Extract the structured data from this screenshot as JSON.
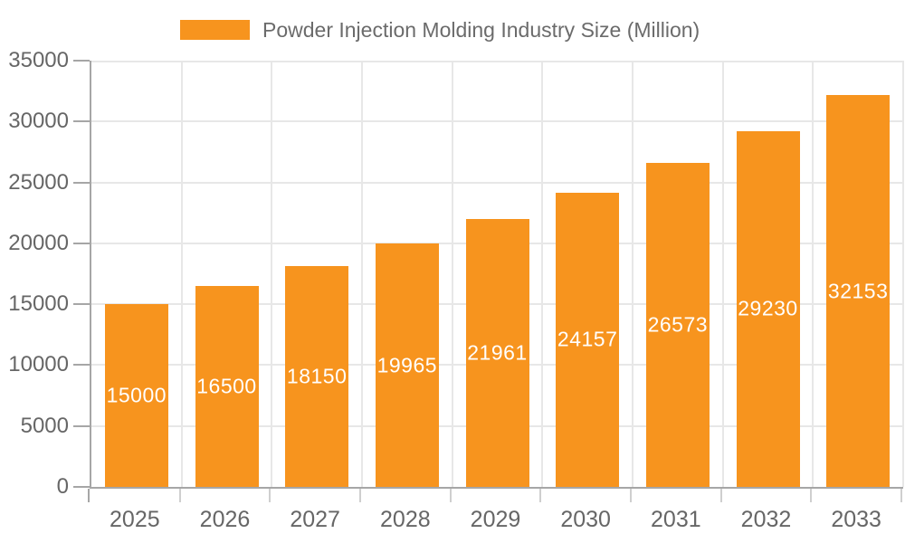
{
  "chart_data": {
    "type": "bar",
    "title": "Powder Injection Molding Industry Size (Million)",
    "categories": [
      "2025",
      "2026",
      "2027",
      "2028",
      "2029",
      "2030",
      "2031",
      "2032",
      "2033"
    ],
    "values": [
      15000,
      16500,
      18150,
      19965,
      21961,
      24157,
      26573,
      29230,
      32153
    ],
    "xlabel": "",
    "ylabel": "",
    "ylim": [
      0,
      35000
    ],
    "yticks": [
      0,
      5000,
      10000,
      15000,
      20000,
      25000,
      30000,
      35000
    ],
    "grid": true,
    "legend_position": "top",
    "colors": {
      "bar": "#F7941E",
      "bar_label": "#FFFFFF",
      "axis_text": "#666666",
      "legend_text": "#6B6B6B",
      "grid_line": "#E7E7E7",
      "axis_line": "#A6A6A6",
      "minor_tick": "#CFCFCF"
    }
  }
}
